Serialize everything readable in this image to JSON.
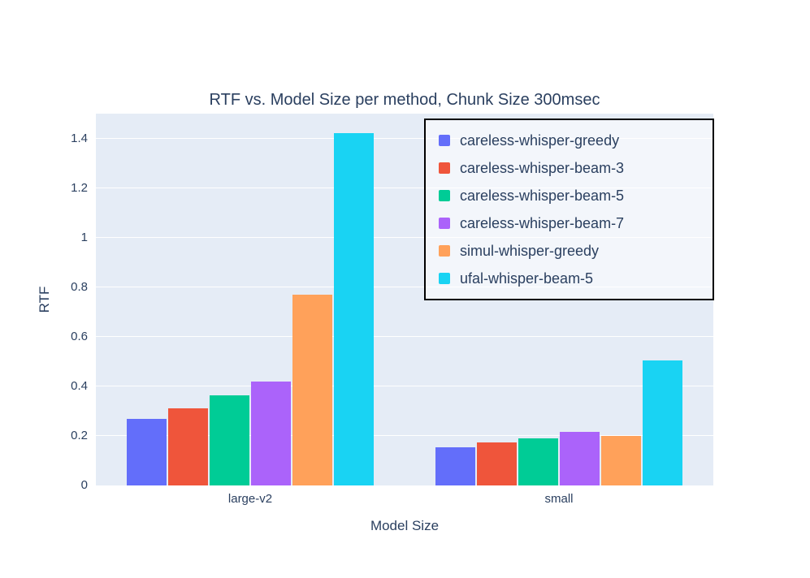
{
  "chart_data": {
    "type": "bar",
    "title": "RTF vs. Model Size per method, Chunk Size 300msec",
    "xlabel": "Model Size",
    "ylabel": "RTF",
    "categories": [
      "large-v2",
      "small"
    ],
    "series": [
      {
        "name": "careless-whisper-greedy",
        "color": "#636EFA",
        "values": [
          0.27,
          0.155
        ]
      },
      {
        "name": "careless-whisper-beam-3",
        "color": "#EF553B",
        "values": [
          0.31,
          0.175
        ]
      },
      {
        "name": "careless-whisper-beam-5",
        "color": "#00CC96",
        "values": [
          0.365,
          0.19
        ]
      },
      {
        "name": "careless-whisper-beam-7",
        "color": "#AB63FA",
        "values": [
          0.42,
          0.215
        ]
      },
      {
        "name": "simul-whisper-greedy",
        "color": "#FFA15A",
        "values": [
          0.77,
          0.2
        ]
      },
      {
        "name": "ufal-whisper-beam-5",
        "color": "#19D3F3",
        "values": [
          1.42,
          0.505
        ]
      }
    ],
    "ylim": [
      0,
      1.5
    ],
    "yticks": [
      0,
      0.2,
      0.4,
      0.6,
      0.8,
      1,
      1.2,
      1.4
    ],
    "grid": true,
    "legend_position": "top-right",
    "plot_bgcolor": "#E5ECF6",
    "paper_bgcolor": "#FFFFFF",
    "font_color": "#2a3f5f",
    "legend_border_color": "#000000"
  }
}
